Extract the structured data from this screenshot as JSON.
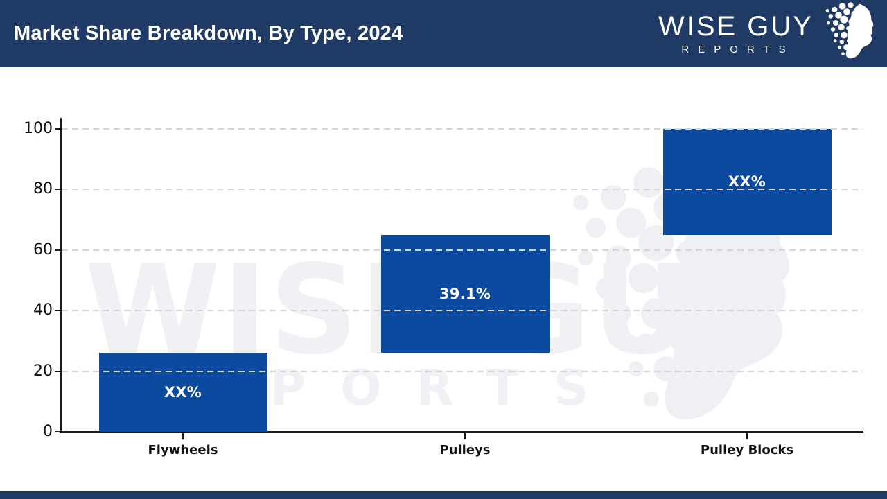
{
  "header": {
    "title": "Market Share Breakdown, By Type, 2024",
    "logo": {
      "brand_top": "WISE GUY",
      "brand_bottom": "REPORTS"
    }
  },
  "watermark": {
    "line1": "WISE GUY",
    "line2": "REPORTS"
  },
  "chart_data": {
    "type": "bar",
    "subtype": "floating-range-bars",
    "title": "Market Share Breakdown, By Type, 2024",
    "categories": [
      "Flywheels",
      "Pulleys",
      "Pulley Blocks"
    ],
    "bars": [
      {
        "category": "Flywheels",
        "from": 0,
        "to": 26,
        "label": "XX%"
      },
      {
        "category": "Pulleys",
        "from": 26,
        "to": 65.1,
        "label": "39.1%"
      },
      {
        "category": "Pulley Blocks",
        "from": 65.1,
        "to": 100,
        "label": "XX%"
      }
    ],
    "yticks": [
      0,
      20,
      40,
      60,
      80,
      100
    ],
    "ylim": [
      0,
      105
    ],
    "xlabel": "",
    "ylabel": "",
    "grid": "dashed-horizontal",
    "legend": "none",
    "bar_color": "#0C4A9F",
    "bar_label_color": "#ffffff"
  },
  "colors": {
    "header_bg": "#203A66",
    "footer_bg": "#203A66",
    "axis": "#1a1a1a",
    "grid": "#d5d5d5",
    "watermark": "#f0f1f4"
  }
}
